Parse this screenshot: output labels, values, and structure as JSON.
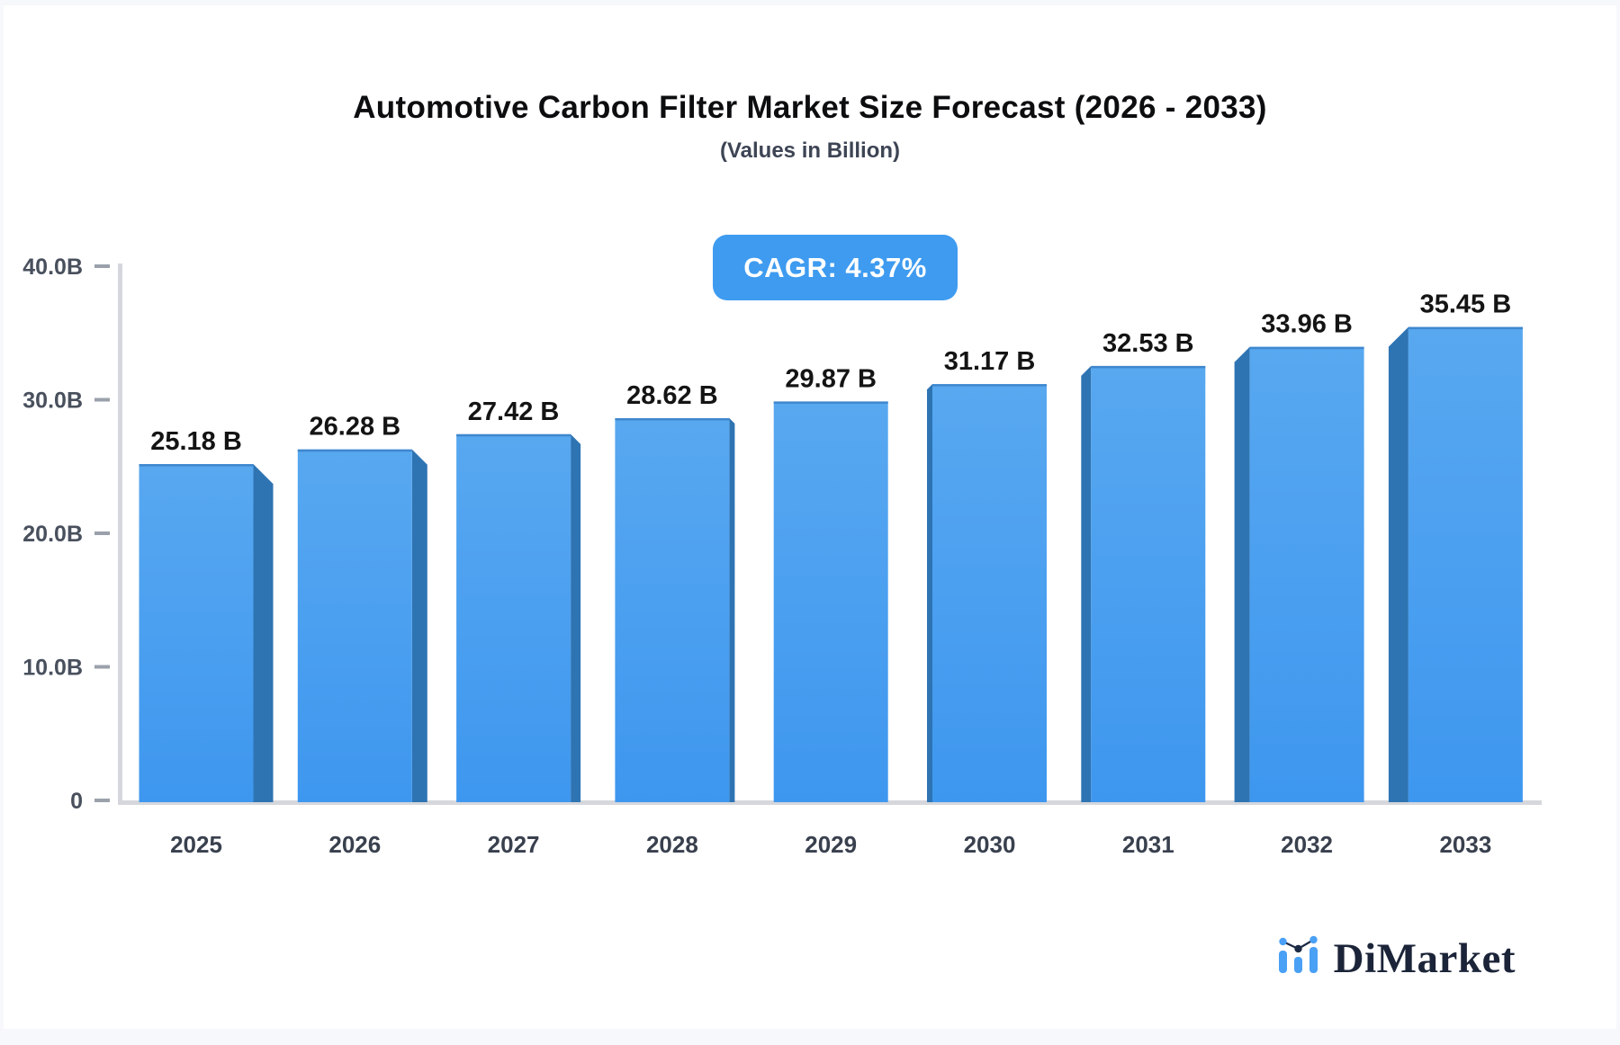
{
  "page": {
    "background": "#f6f8fb",
    "card_background": "#ffffff"
  },
  "header": {
    "title": "Automotive Carbon Filter Market Size Forecast (2026 - 2033)",
    "subtitle": "(Values in Billion)"
  },
  "badge": {
    "label": "CAGR: 4.37%",
    "color": "#3E9BF0",
    "text_color": "#ffffff"
  },
  "chart_data": {
    "type": "bar",
    "title": "Automotive Carbon Filter Market Size Forecast (2026 - 2033)",
    "subtitle": "(Values in Billion)",
    "categories": [
      "2025",
      "2026",
      "2027",
      "2028",
      "2029",
      "2030",
      "2031",
      "2032",
      "2033"
    ],
    "values": [
      25.18,
      26.28,
      27.42,
      28.62,
      29.87,
      31.17,
      32.53,
      33.96,
      35.45
    ],
    "value_labels": [
      "25.18 B",
      "26.28 B",
      "27.42 B",
      "28.62 B",
      "29.87 B",
      "31.17 B",
      "32.53 B",
      "33.96 B",
      "35.45 B"
    ],
    "unit": "Billion",
    "xlabel": "",
    "ylabel": "",
    "ylim": [
      0,
      40
    ],
    "yticks": [
      {
        "value": 0,
        "label": "0"
      },
      {
        "value": 10,
        "label": "10.0B"
      },
      {
        "value": 20,
        "label": "20.0B"
      },
      {
        "value": 30,
        "label": "30.0B"
      },
      {
        "value": 40,
        "label": "40.0B"
      }
    ],
    "grid": false,
    "legend": "none",
    "style_3d": true,
    "colors": {
      "bar_front_top": "#58A8F0",
      "bar_front_bottom": "#3E97EF",
      "bar_top_edge": "#3F87CE",
      "bar_side": "#2E74B3",
      "axis_line": "#D5D7DC",
      "tick_mark": "#9AA1AB",
      "axis_label": "#49505D",
      "category_label": "#39404E",
      "value_label": "#141414"
    }
  },
  "footer": {
    "logo_text": "DiMarket",
    "logo_icon": "bar-chart-logo-icon",
    "logo_text_color": "#1B2438",
    "logo_accent_color": "#4AA0F5",
    "logo_dot_dark_color": "#1B2A44"
  }
}
